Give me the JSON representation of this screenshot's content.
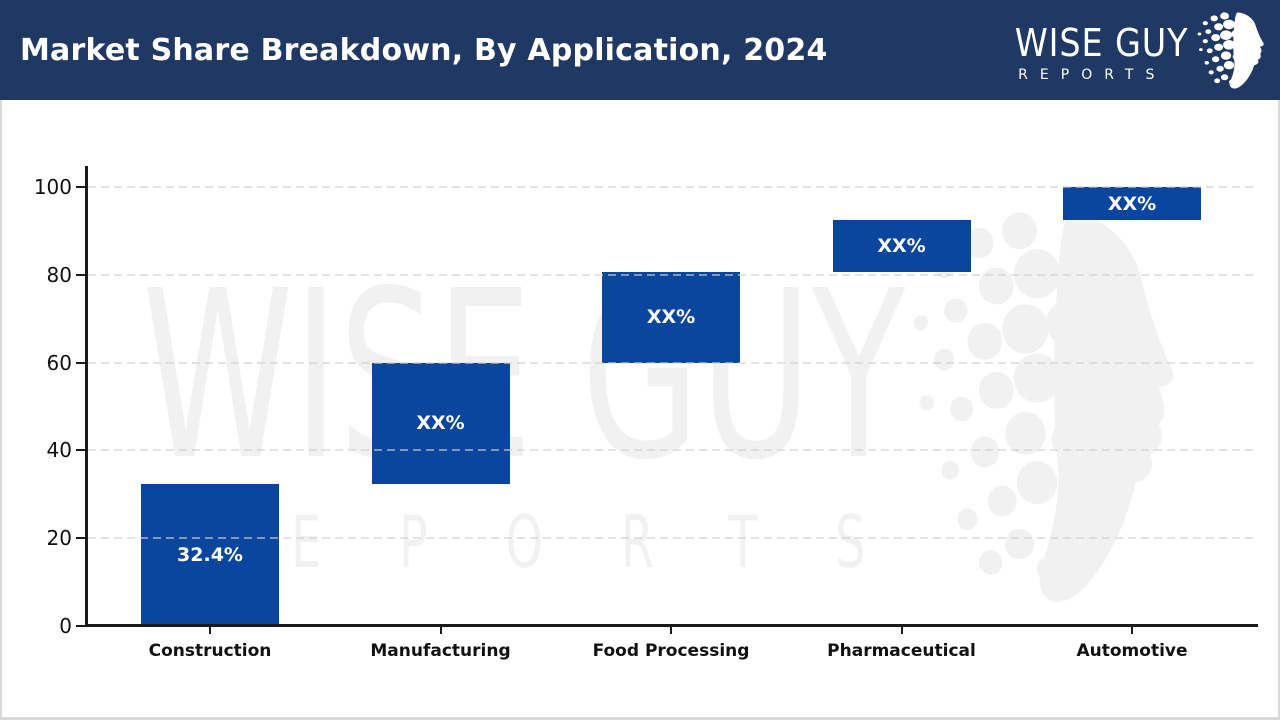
{
  "header": {
    "title": "Market Share Breakdown, By Application, 2024",
    "logo": {
      "line1": "WISE GUY",
      "line2": "REPORTS"
    }
  },
  "watermark": {
    "line1": "WISE GUY",
    "line2": "REPORTS"
  },
  "icons": {
    "brand_icon": "wiseguy-dotted-face-profile"
  },
  "colors": {
    "header_bg": "#1F3864",
    "bar": "#0B469E",
    "axis": "#1a1a1a",
    "grid": "#e8e8e8",
    "watermark": "#f1f1f1",
    "page_border": "#d9d9d9",
    "bar_label_text": "#ffffff",
    "title_text": "#ffffff"
  },
  "chart_data": {
    "type": "bar",
    "subtype": "waterfall",
    "title": "Market Share Breakdown, By Application, 2024",
    "categories": [
      "Construction",
      "Manufacturing",
      "Food Processing",
      "Pharmaceutical",
      "Automotive"
    ],
    "starts": [
      0,
      32.4,
      60.0,
      80.6,
      92.4
    ],
    "ends": [
      32.4,
      60.0,
      80.6,
      92.4,
      100.0
    ],
    "values": [
      32.4,
      27.6,
      20.6,
      11.8,
      7.6
    ],
    "bar_labels": [
      "32.4%",
      "XX%",
      "XX%",
      "XX%",
      "XX%"
    ],
    "unit": "%",
    "xlabel": "",
    "ylabel": "",
    "yticks": [
      0,
      20,
      40,
      60,
      80,
      100
    ],
    "ylim": [
      0,
      100
    ],
    "grid": "horizontal-dashed",
    "legend": "none",
    "bar_color": "#0B469E"
  }
}
